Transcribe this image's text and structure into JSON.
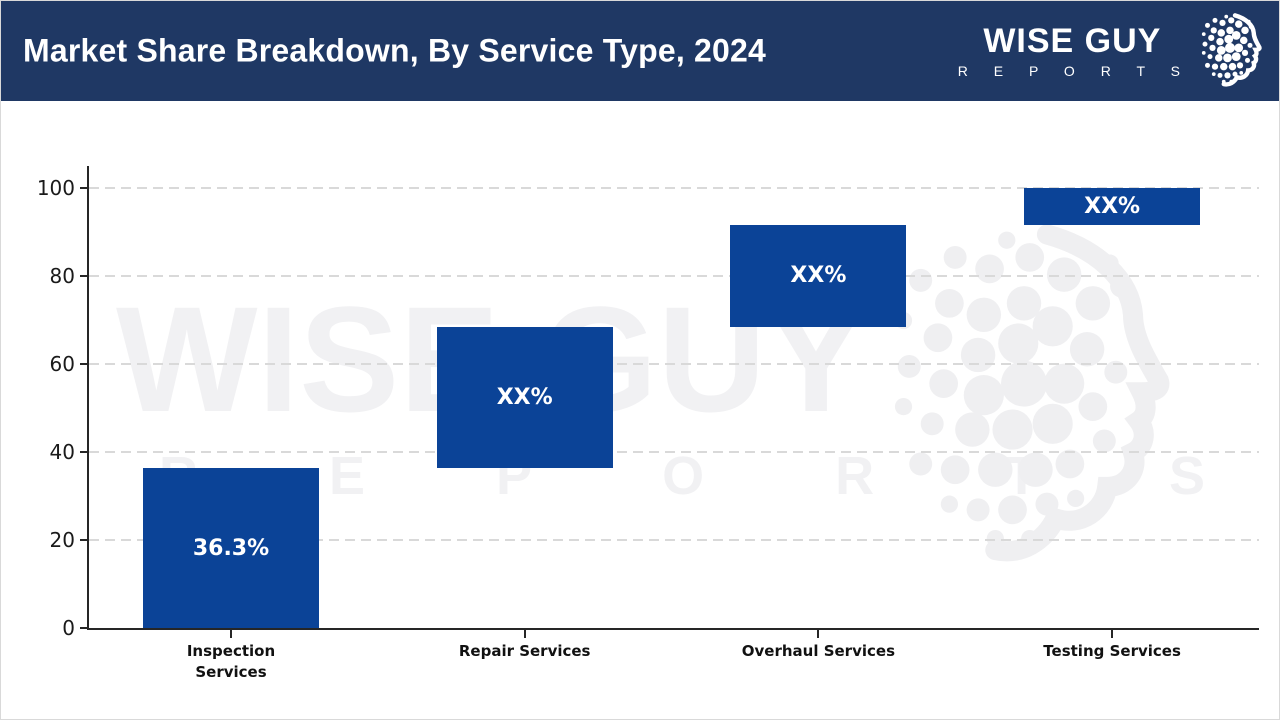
{
  "header": {
    "title": "Market Share Breakdown, By Service Type, 2024",
    "logo": {
      "name_line": "WISE GUY",
      "sub_line": "R E P O R T S"
    }
  },
  "watermark": {
    "name_line": "WISE GUY",
    "sub_line": "R E P O R T S"
  },
  "chart_data": {
    "type": "bar",
    "subtype": "waterfall-stacked-percentage",
    "title": "Market Share Breakdown, By Service Type, 2024",
    "categories": [
      "Inspection\nServices",
      "Repair Services",
      "Overhaul Services",
      "Testing Services"
    ],
    "segments": [
      {
        "category": "Inspection Services",
        "start": 0,
        "end": 36.3,
        "label": "36.3%"
      },
      {
        "category": "Repair Services",
        "start": 36.3,
        "end": 68.3,
        "label": "XX%"
      },
      {
        "category": "Overhaul Services",
        "start": 68.3,
        "end": 91.7,
        "label": "XX%"
      },
      {
        "category": "Testing Services",
        "start": 91.7,
        "end": 100,
        "label": "XX%"
      }
    ],
    "xlabel": "",
    "ylabel": "",
    "yticks": [
      0,
      20,
      40,
      60,
      80,
      100
    ],
    "ylim": [
      0,
      100
    ],
    "grid": "horizontal-dashed",
    "legend": "none",
    "colors": {
      "bar": "#0b4397",
      "bar_label": "#ffffff",
      "grid": "#d9d9d9",
      "axis": "#262626",
      "header_bg": "#1f3864",
      "header_text": "#ffffff",
      "watermark": "#f1f1f3"
    }
  }
}
